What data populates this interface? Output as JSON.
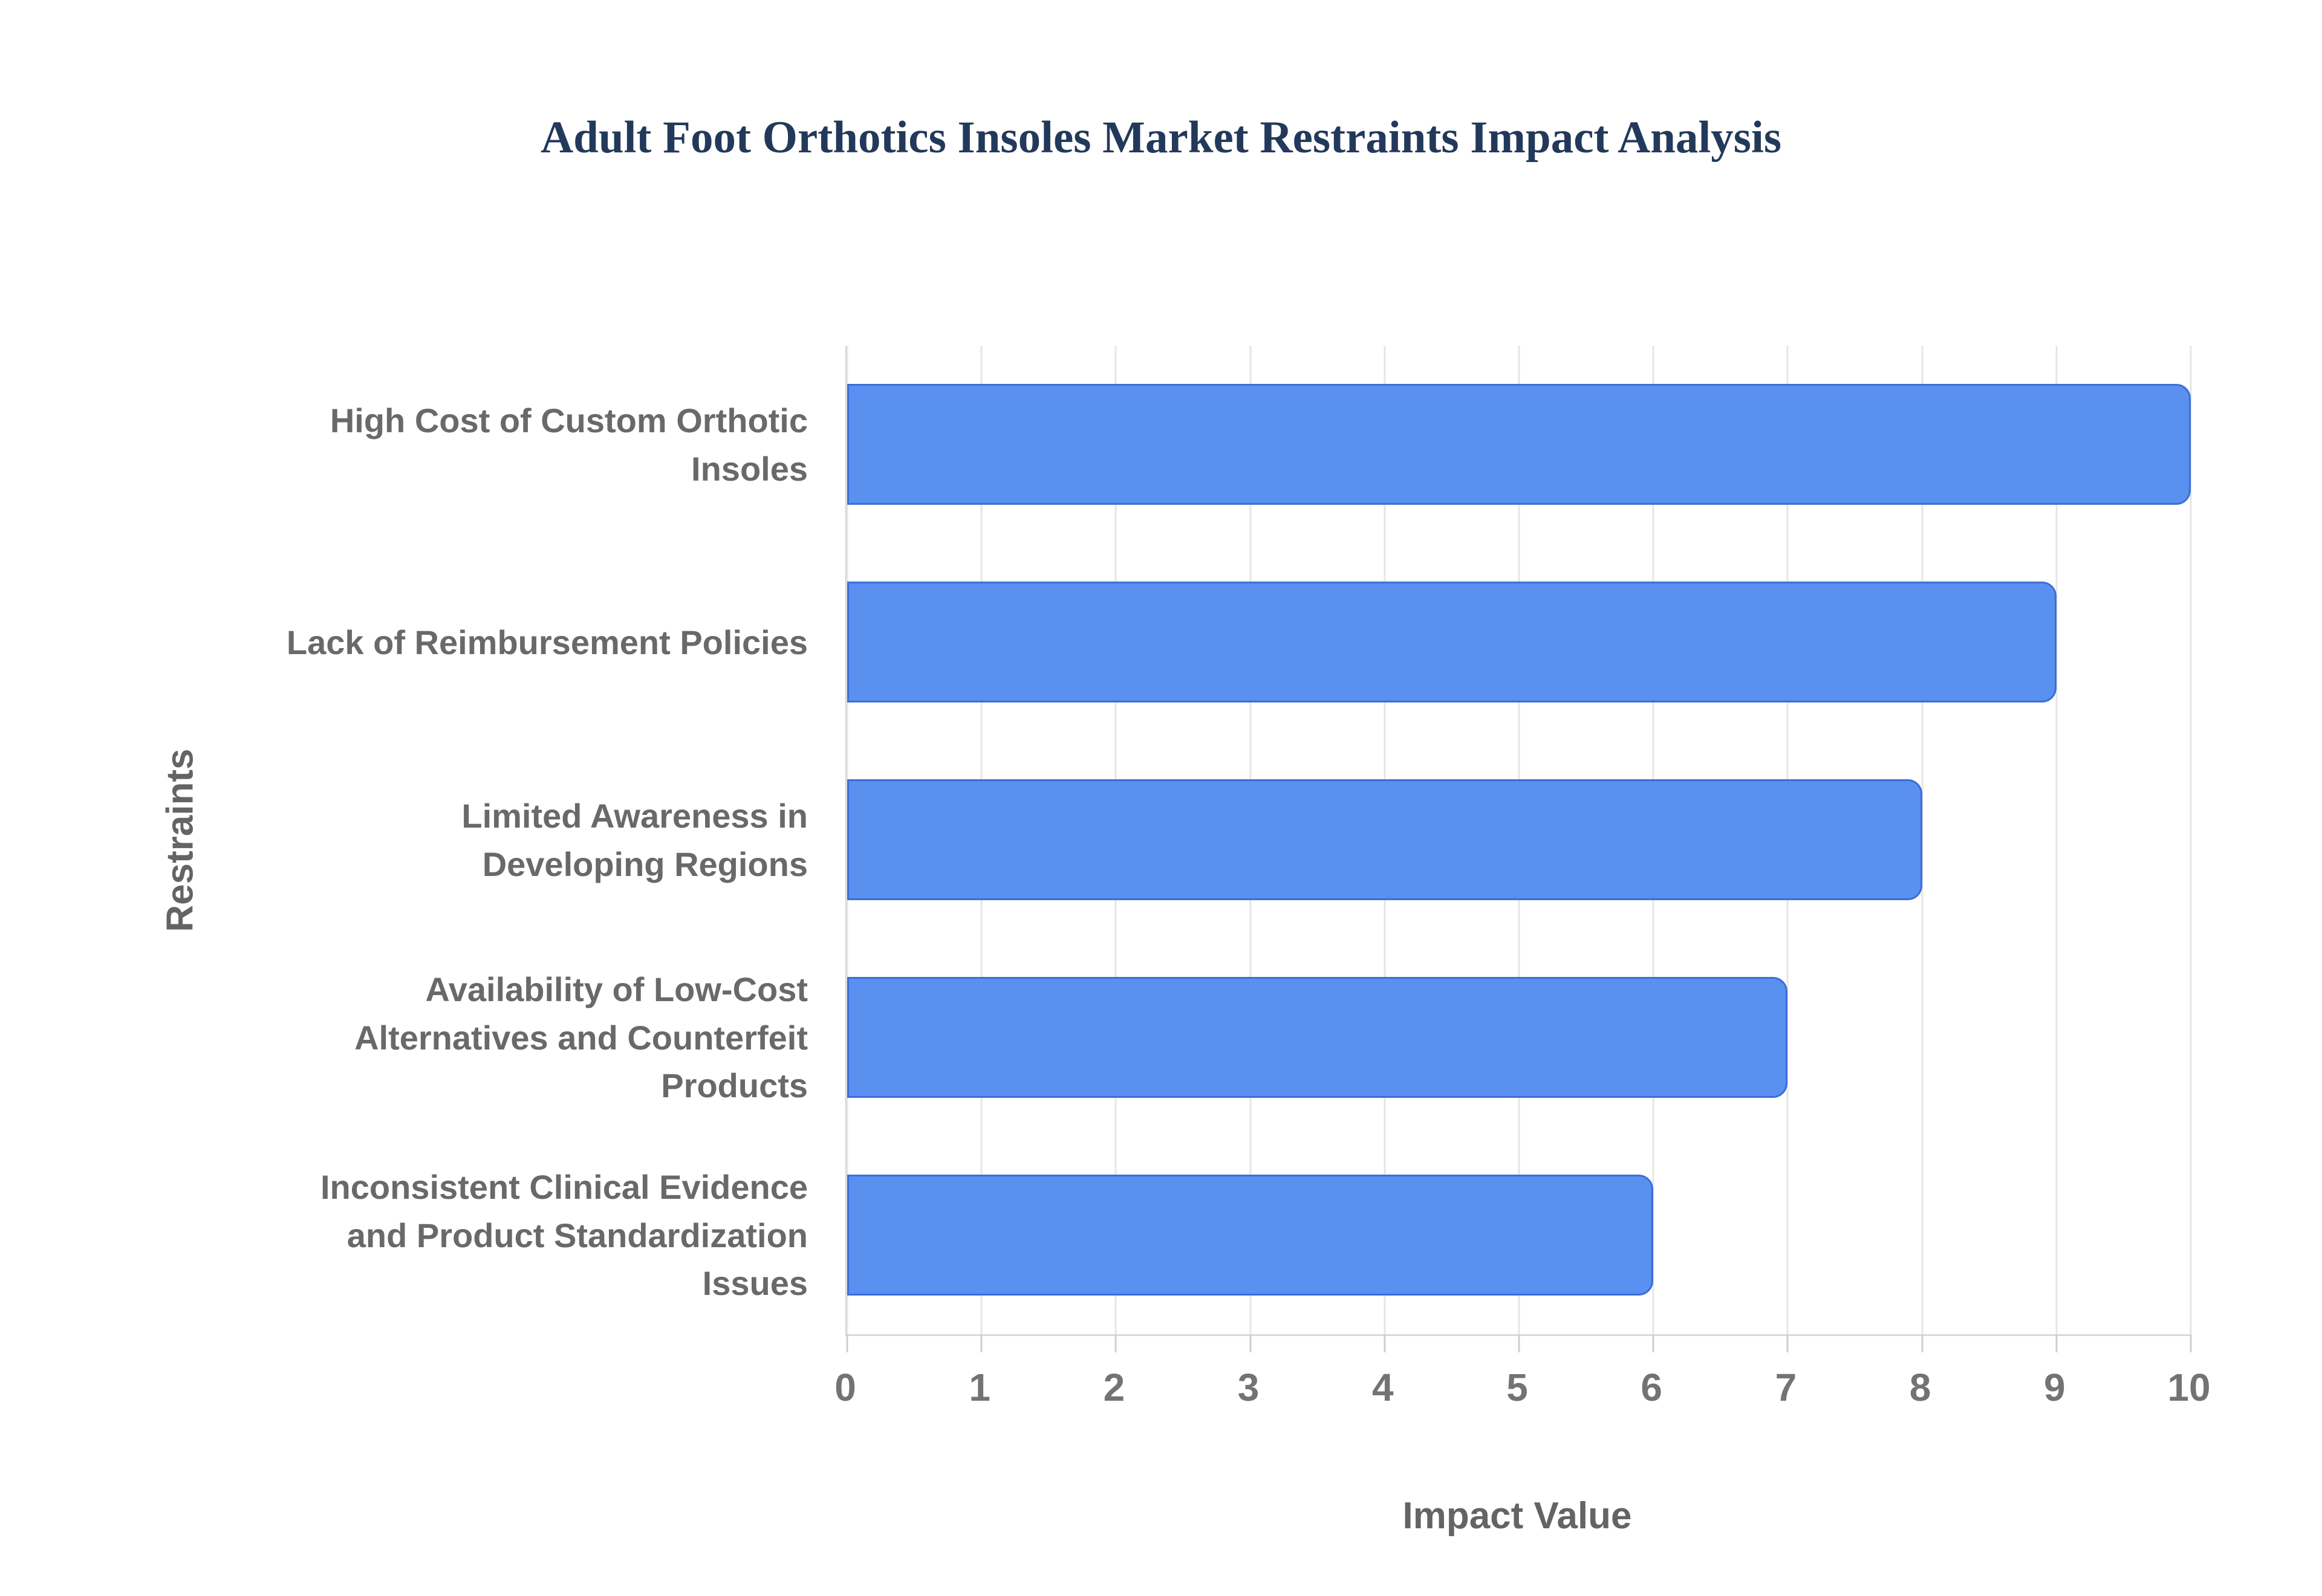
{
  "chart_data": {
    "type": "bar",
    "orientation": "horizontal",
    "title": "Adult Foot Orthotics Insoles Market Restraints Impact Analysis",
    "xlabel": "Impact Value",
    "ylabel": "Restraints",
    "categories": [
      "High Cost of Custom Orthotic\nInsoles",
      "Lack of Reimbursement Policies",
      "Limited Awareness in\nDeveloping Regions",
      "Availability of Low-Cost\nAlternatives and Counterfeit\nProducts",
      "Inconsistent Clinical Evidence\nand Product Standardization\nIssues"
    ],
    "values": [
      10,
      9,
      8,
      7,
      6
    ],
    "xlim": [
      0,
      10
    ],
    "xticks": [
      0,
      1,
      2,
      3,
      4,
      5,
      6,
      7,
      8,
      9,
      10
    ],
    "grid": true,
    "legend": false,
    "colors": {
      "bar_fill": "#5A90F0",
      "bar_border": "#3C6ED7",
      "gridline": "#E6E6E6",
      "axis_line": "#CFCFCF",
      "tick_text": "#737373",
      "category_text": "#696969",
      "axis_title_text": "#646464",
      "title_text": "#22395B",
      "background": "#FFFFFF"
    }
  }
}
